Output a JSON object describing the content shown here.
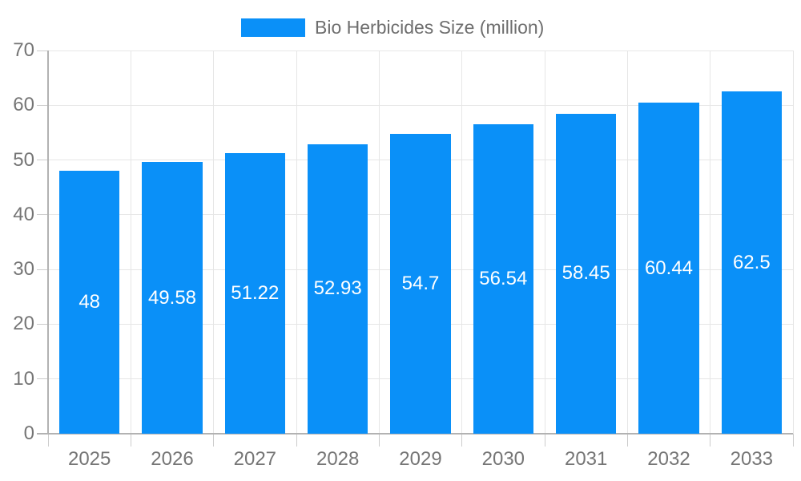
{
  "legend": {
    "label": "Bio Herbicides Size (million)"
  },
  "chart_data": {
    "type": "bar",
    "title": "Bio Herbicides Size (million)",
    "categories": [
      "2025",
      "2026",
      "2027",
      "2028",
      "2029",
      "2030",
      "2031",
      "2032",
      "2033"
    ],
    "values": [
      48,
      49.58,
      51.22,
      52.93,
      54.7,
      56.54,
      58.45,
      60.44,
      62.5
    ],
    "value_labels": [
      "48",
      "49.58",
      "51.22",
      "52.93",
      "54.7",
      "56.54",
      "58.45",
      "60.44",
      "62.5"
    ],
    "xlabel": "",
    "ylabel": "",
    "ylim": [
      0,
      70
    ],
    "yticks": [
      0,
      10,
      20,
      30,
      40,
      50,
      60,
      70
    ],
    "grid": true,
    "legend_position": "top-center",
    "colors": {
      "bar": "#0a90f8",
      "grid": "#e6e6e6",
      "axis": "#b2b2b2",
      "tick": "#cccccc",
      "axis_label": "#757575",
      "value_label": "#ffffff",
      "legend_text": "#6e6e6e",
      "background": "#ffffff"
    }
  }
}
